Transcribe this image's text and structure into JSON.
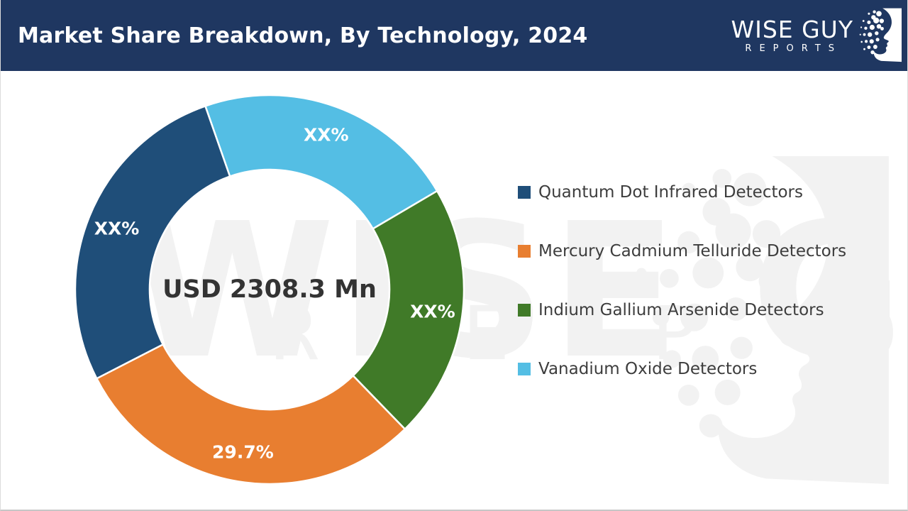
{
  "header": {
    "title": "Market Share Breakdown, By Technology, 2024",
    "logo": {
      "line1": "WISE GUY",
      "line2": "REPORTS"
    }
  },
  "chart_data": {
    "type": "pie",
    "subtype": "donut",
    "title": "Market Share Breakdown, By Technology, 2024",
    "center_label": "USD 2308.3 Mn",
    "start_angle_deg": -19.3,
    "legend_position": "right",
    "segments": [
      {
        "name": "Vanadium Oxide Detectors",
        "value": 21.9,
        "label": "XX%",
        "color": "#54BEE4"
      },
      {
        "name": "Indium Gallium Arsenide Detectors",
        "value": 21.2,
        "label": "XX%",
        "color": "#407A28"
      },
      {
        "name": "Mercury Cadmium Telluride Detectors",
        "value": 29.7,
        "label": "29.7%",
        "color": "#E87E30"
      },
      {
        "name": "Quantum Dot Infrared Detectors",
        "value": 27.2,
        "label": "XX%",
        "color": "#1F4E79"
      }
    ]
  },
  "legend": {
    "items": [
      {
        "label": "Quantum Dot Infrared Detectors",
        "color": "#1F4E79"
      },
      {
        "label": "Mercury Cadmium Telluride Detectors",
        "color": "#E87E30"
      },
      {
        "label": "Indium Gallium Arsenide Detectors",
        "color": "#407A28"
      },
      {
        "label": "Vanadium Oxide Detectors",
        "color": "#54BEE4"
      }
    ]
  },
  "watermark": {
    "line1": "WISE GUY",
    "line2": "R E P O R T S"
  },
  "colors": {
    "header_bg": "#1F3761",
    "center_text": "#333333",
    "legend_text": "#3d3d3d"
  }
}
